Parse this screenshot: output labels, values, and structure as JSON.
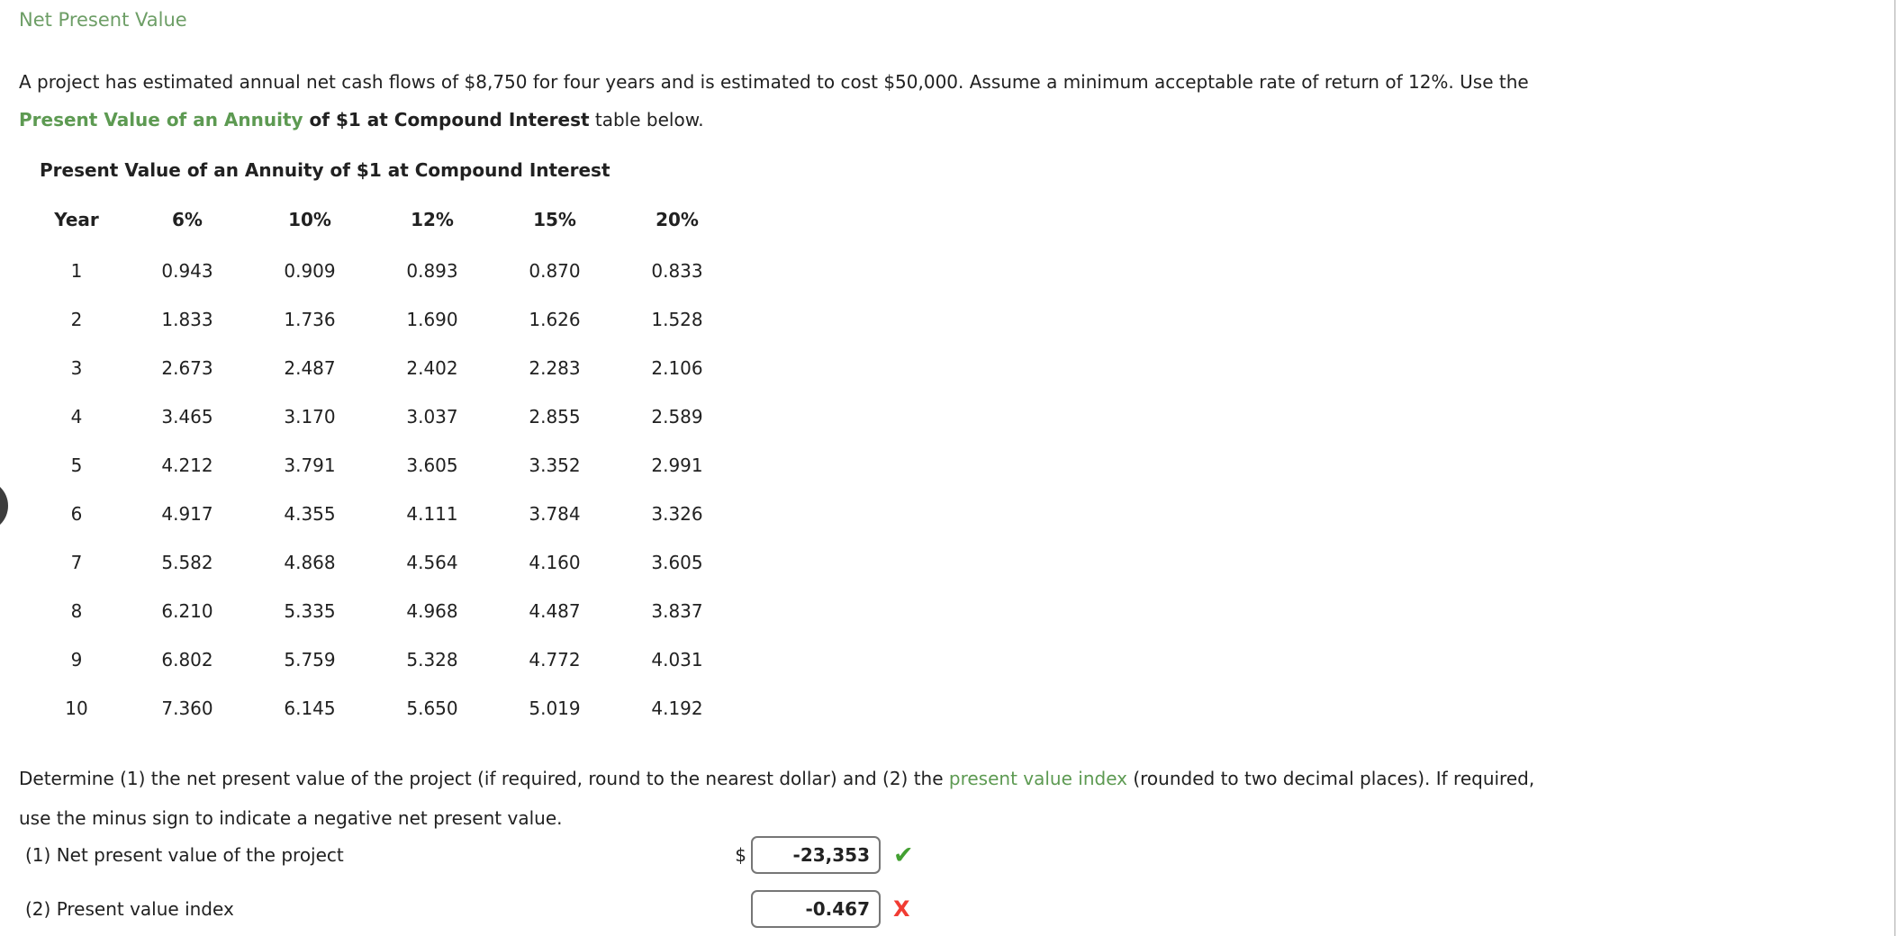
{
  "title": "Net Present Value",
  "intro": {
    "line1": "A project has estimated annual net cash flows of $8,750 for four years and is estimated to cost $50,000. Assume a minimum acceptable rate of return of 12%. Use the",
    "line2_link": "Present Value of an Annuity",
    "line2_bold": " of $1 at Compound Interest",
    "line2_tail": " table below."
  },
  "table": {
    "title": "Present Value of an Annuity of $1 at Compound Interest",
    "columns": [
      "Year",
      "6%",
      "10%",
      "12%",
      "15%",
      "20%"
    ],
    "rows": [
      [
        "1",
        "0.943",
        "0.909",
        "0.893",
        "0.870",
        "0.833"
      ],
      [
        "2",
        "1.833",
        "1.736",
        "1.690",
        "1.626",
        "1.528"
      ],
      [
        "3",
        "2.673",
        "2.487",
        "2.402",
        "2.283",
        "2.106"
      ],
      [
        "4",
        "3.465",
        "3.170",
        "3.037",
        "2.855",
        "2.589"
      ],
      [
        "5",
        "4.212",
        "3.791",
        "3.605",
        "3.352",
        "2.991"
      ],
      [
        "6",
        "4.917",
        "4.355",
        "4.111",
        "3.784",
        "3.326"
      ],
      [
        "7",
        "5.582",
        "4.868",
        "4.564",
        "4.160",
        "3.605"
      ],
      [
        "8",
        "6.210",
        "5.335",
        "4.968",
        "4.487",
        "3.837"
      ],
      [
        "9",
        "6.802",
        "5.759",
        "5.328",
        "4.772",
        "4.031"
      ],
      [
        "10",
        "7.360",
        "6.145",
        "5.650",
        "5.019",
        "4.192"
      ]
    ]
  },
  "determine": {
    "line1_a": "Determine (1) the net present value of the project (if required, round to the nearest dollar) and (2) the ",
    "link": "present value index",
    "line1_b": " (rounded to two decimal places). If required,",
    "line2": "use the minus sign to indicate a negative net present value."
  },
  "answers": [
    {
      "label": "(1) Net present value of the project",
      "prefix": "$",
      "value": "-23,353",
      "status": "correct",
      "mark": "✔"
    },
    {
      "label": "(2) Present value index",
      "prefix": "",
      "value": "-0.467",
      "status": "incorrect",
      "mark": "X"
    }
  ],
  "colors": {
    "heading_green": "#6d9e66",
    "link_green": "#5d9a52",
    "correct_green": "#43a032",
    "incorrect_red": "#f13c33",
    "text": "#212121",
    "input_border": "#767676"
  }
}
